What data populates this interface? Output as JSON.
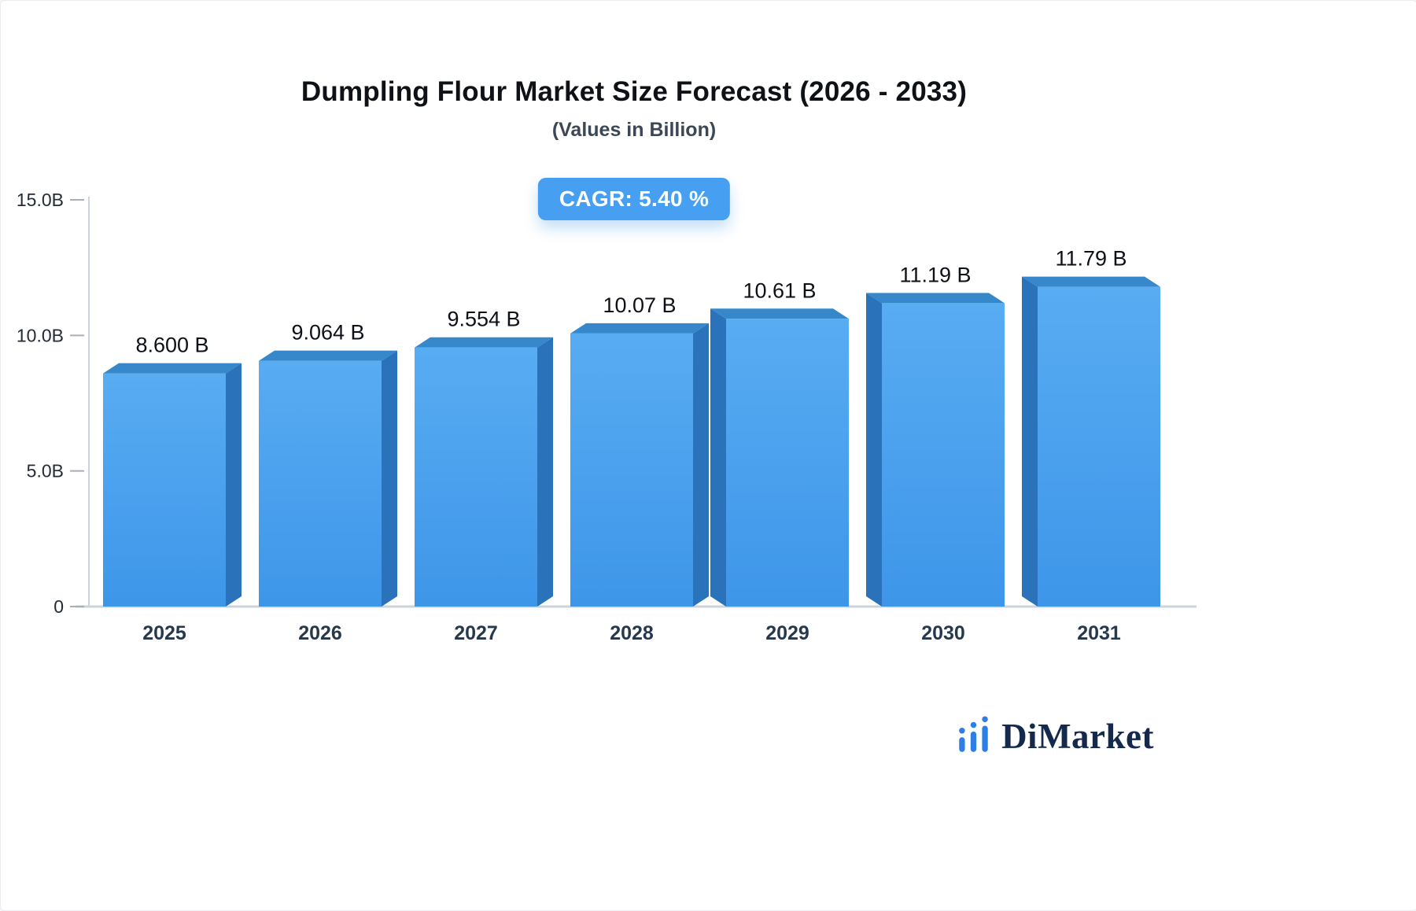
{
  "chart_data": {
    "type": "bar",
    "title": "Dumpling Flour Market Size Forecast (2026 - 2033)",
    "subtitle": "(Values in Billion)",
    "categories": [
      "2025",
      "2026",
      "2027",
      "2028",
      "2029",
      "2030",
      "2031"
    ],
    "values": [
      8.6,
      9.064,
      9.554,
      10.07,
      10.61,
      11.19,
      11.79
    ],
    "value_labels": [
      "8.600 B",
      "9.064 B",
      "9.554 B",
      "10.07 B",
      "10.61 B",
      "11.19 B",
      "11.79 B"
    ],
    "xlabel": "",
    "ylabel": "",
    "ylim": [
      0,
      15
    ],
    "yticks": [
      0,
      5,
      10,
      15
    ],
    "ytick_labels": [
      "0",
      "5.0B",
      "10.0B",
      "15.0B"
    ],
    "grid": false,
    "legend": "none"
  },
  "badge": {
    "label": "CAGR: 5.40 %"
  },
  "branding": {
    "name": "DiMarket",
    "icon": "bar-chart-icon"
  },
  "chart_style": {
    "bar_front": "#3e96e9",
    "bar_top_light": "#58acf2",
    "bar_side": "#2a72b9",
    "bar_top": "#3787cb",
    "axis_color": "#cdd3da",
    "tick_color": "#a7afb8",
    "ytick_text": "#232b35",
    "xtick_text": "#26384c",
    "value_text": "#0d1117",
    "badge_bg": "#469ff0",
    "logo_accent": "#2d7fe5",
    "logo_text": "#14294b"
  }
}
